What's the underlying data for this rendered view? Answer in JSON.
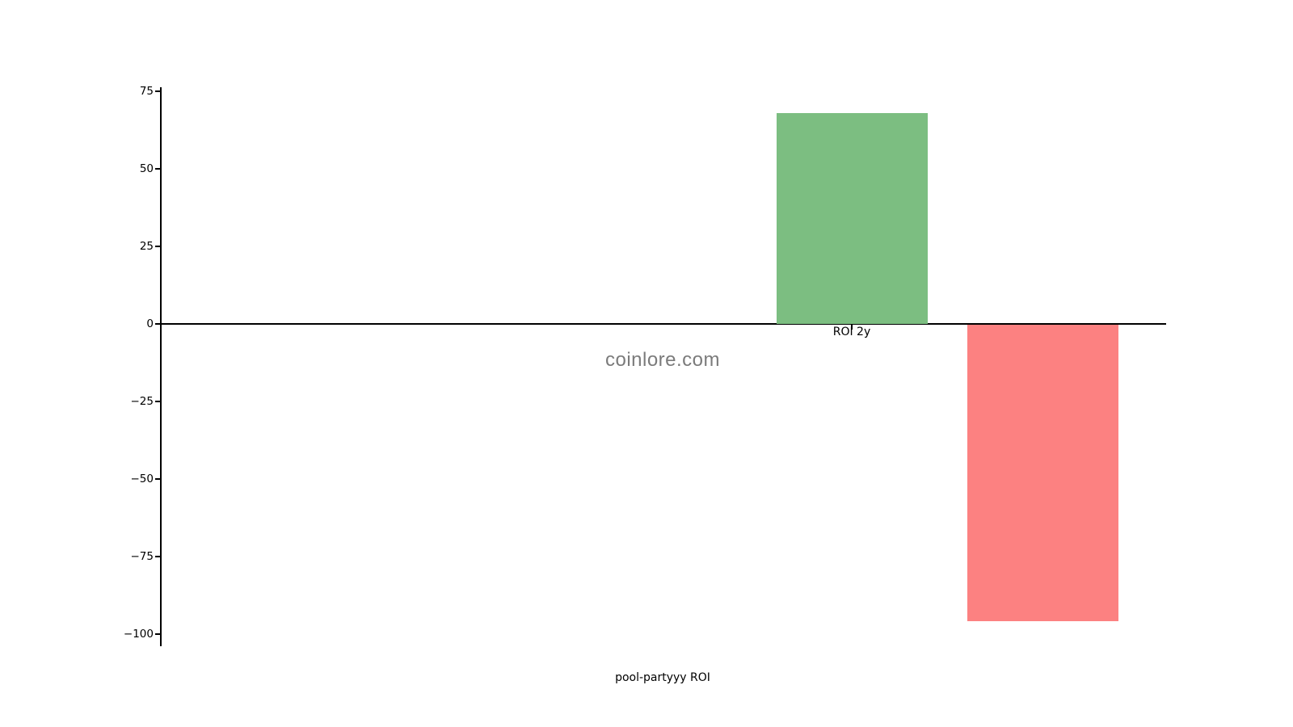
{
  "watermark": "coinlore.com",
  "chart_data": {
    "type": "bar",
    "title": "",
    "xlabel": "pool-partyyy ROI",
    "ylabel": "",
    "categories": [
      "ROI 2y",
      ""
    ],
    "values": [
      68,
      -95.6
    ],
    "series": [
      {
        "name": "ROI",
        "values": [
          68,
          -95.6
        ]
      }
    ],
    "bar_colors": [
      "#7cbe81",
      "#fc8181"
    ],
    "positive_color": "#7cbe81",
    "negative_color": "#fc8181",
    "yticks": [
      75,
      50,
      25,
      0,
      -25,
      -50,
      -75,
      -100
    ],
    "ytick_labels": [
      "75",
      "50",
      "25",
      "0",
      "−25",
      "−50",
      "−75",
      "−100"
    ],
    "ylim": [
      -104,
      76.5
    ],
    "grid": false,
    "legend": false,
    "axis_color": "#000000",
    "watermark_color": "#7b7b7b"
  }
}
